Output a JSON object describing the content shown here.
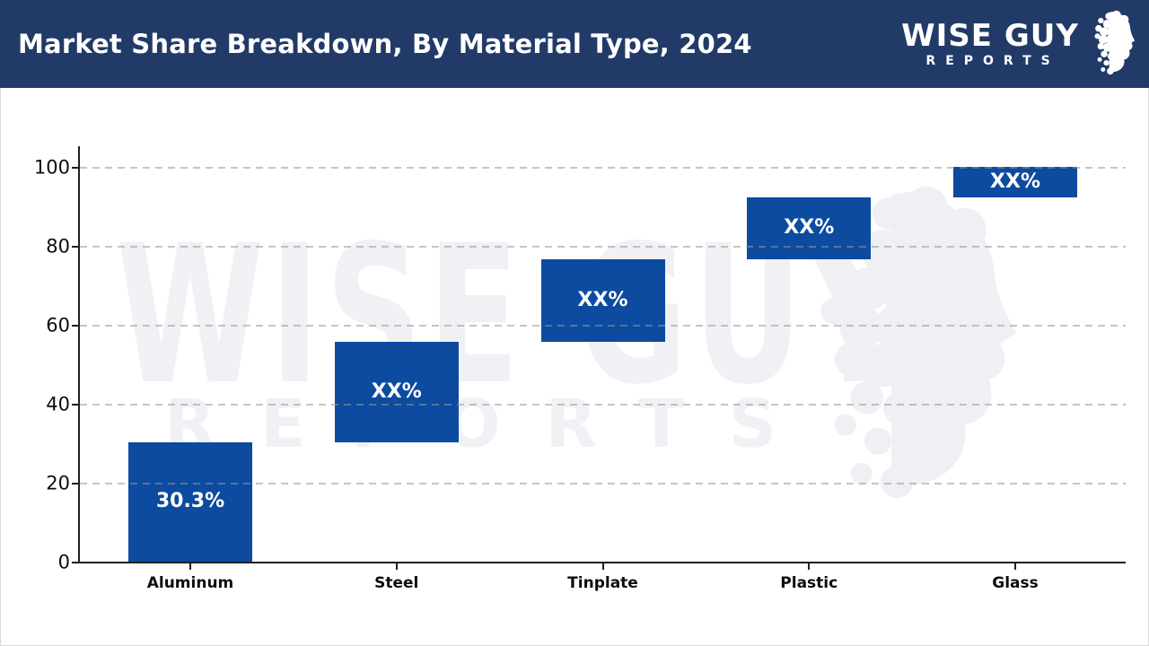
{
  "header": {
    "title": "Market Share Breakdown, By Material Type, 2024",
    "background_color": "#223a68",
    "logo": {
      "main": "WISE GUY",
      "sub": "REPORTS"
    }
  },
  "watermark": {
    "line1": "WISE GUY",
    "line2": "REPORTS"
  },
  "chart_data": {
    "type": "bar",
    "subtype": "waterfall-floating-bars",
    "title": "Market Share Breakdown, By Material Type, 2024",
    "categories": [
      "Aluminum",
      "Steel",
      "Tinplate",
      "Plastic",
      "Glass"
    ],
    "segments": [
      {
        "category": "Aluminum",
        "start": 0,
        "end": 30.3,
        "label": "30.3%"
      },
      {
        "category": "Steel",
        "start": 30.3,
        "end": 55.6,
        "label": "XX%"
      },
      {
        "category": "Tinplate",
        "start": 55.6,
        "end": 76.6,
        "label": "XX%"
      },
      {
        "category": "Plastic",
        "start": 76.6,
        "end": 92.3,
        "label": "XX%"
      },
      {
        "category": "Glass",
        "start": 92.3,
        "end": 100,
        "label": "XX%"
      }
    ],
    "xlabel": "",
    "ylabel": "",
    "ylim": [
      0,
      100
    ],
    "yticks": [
      0,
      20,
      40,
      60,
      80,
      100
    ],
    "grid": "dashed-horizontal",
    "legend": "none",
    "bar_color": "#0c4b9f",
    "bar_label_color": "#ffffff"
  }
}
